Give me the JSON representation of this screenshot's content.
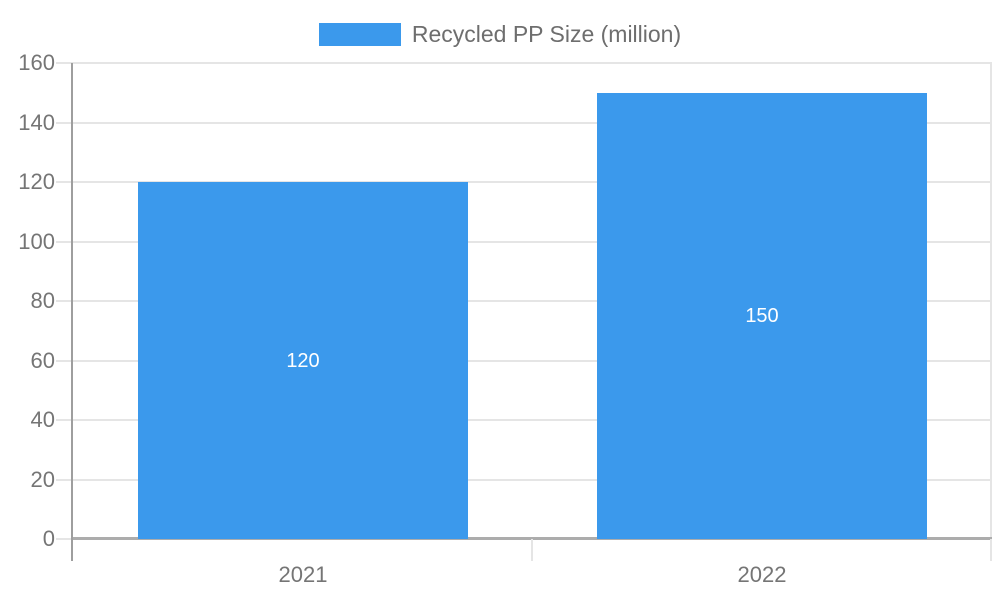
{
  "chart_data": {
    "type": "bar",
    "title": "",
    "xlabel": "",
    "ylabel": "",
    "legend": {
      "label": "Recycled PP Size (million)",
      "position": "top-center"
    },
    "categories": [
      "2021",
      "2022"
    ],
    "series": [
      {
        "name": "Recycled PP Size (million)",
        "values": [
          120,
          150
        ]
      }
    ],
    "value_labels": [
      "120",
      "150"
    ],
    "ylim": [
      0,
      160
    ],
    "ytick_step": 20,
    "ytick_labels": [
      "0",
      "20",
      "40",
      "60",
      "80",
      "100",
      "120",
      "140",
      "160"
    ],
    "grid": true,
    "colors": {
      "bar": "#3B99EC",
      "grid": "#E5E5E5",
      "y_axis_line": "#9E9E9E",
      "x_axis_line": "#ACACAC",
      "axis_label": "#757575",
      "value_label": "#FFFFFF",
      "legend_text": "#6E6E6E",
      "background": "#FFFFFF"
    }
  }
}
